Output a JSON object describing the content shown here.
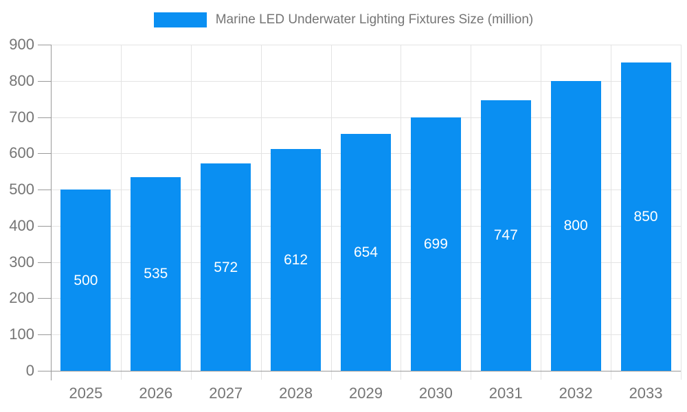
{
  "legend": {
    "label": "Marine LED Underwater Lighting Fixtures Size (million)"
  },
  "chart_data": {
    "type": "bar",
    "title": "Marine LED Underwater Lighting Fixtures Size (million)",
    "categories": [
      "2025",
      "2026",
      "2027",
      "2028",
      "2029",
      "2030",
      "2031",
      "2032",
      "2033"
    ],
    "values": [
      500,
      535,
      572,
      612,
      654,
      699,
      747,
      800,
      850
    ],
    "xlabel": "",
    "ylabel": "",
    "ylim": [
      0,
      900
    ],
    "ytick_step": 100,
    "ytick_labels": [
      "0",
      "100",
      "200",
      "300",
      "400",
      "500",
      "600",
      "700",
      "800",
      "900"
    ],
    "grid": true,
    "legend_position": "top-center",
    "value_labels": "centered-inside-bars"
  },
  "colors": {
    "bar": "#0a8ff2",
    "grid": "#e3e3e3",
    "axis": "#999999",
    "text": "#757575",
    "bar_label": "#ffffff",
    "background": "#ffffff"
  }
}
